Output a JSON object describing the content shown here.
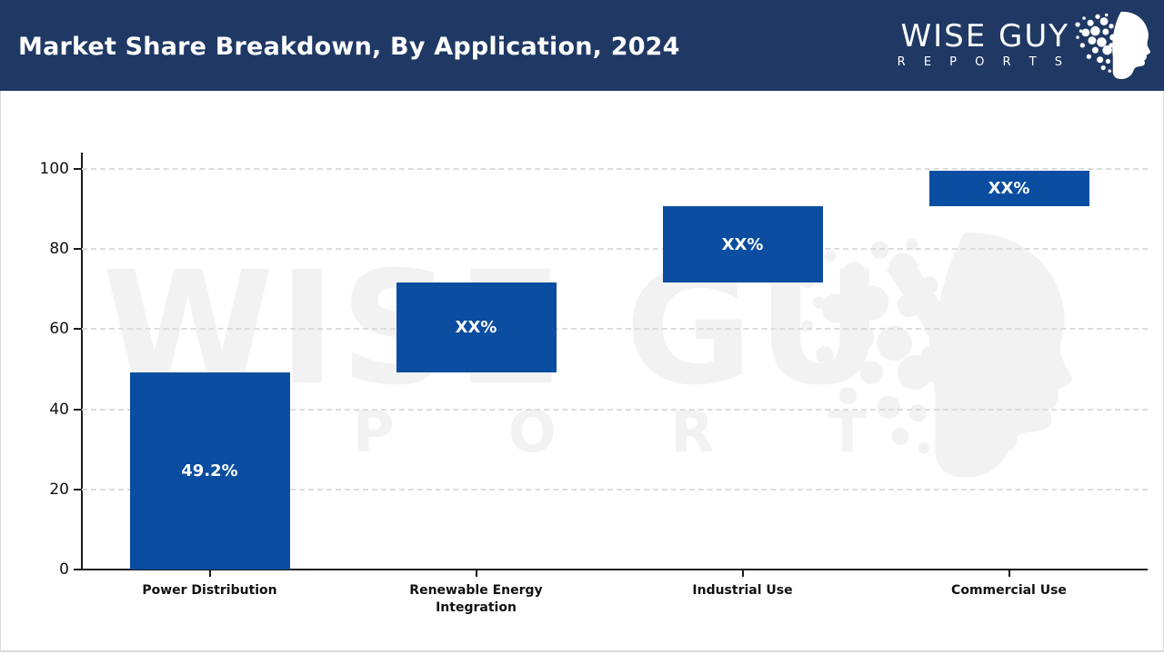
{
  "header": {
    "title": "Market Share Breakdown, By Application, 2024",
    "logo": {
      "line1": "WISE GUY",
      "line2": "R E P O R T S"
    }
  },
  "watermark": {
    "line1": "WISE GUY",
    "line2": "P O R T S"
  },
  "colors": {
    "header_bg": "#1f3864",
    "bar_blue": "#0b4da0",
    "grid_gray": "#dcdcdc",
    "watermark_gray": "#f2f2f2",
    "axis_black": "#1a1a1a"
  },
  "chart_data": {
    "type": "bar",
    "subtype": "waterfall",
    "title": "Market Share Breakdown, By Application, 2024",
    "categories": [
      "Power Distribution",
      "Renewable Energy Integration",
      "Industrial Use",
      "Commercial Use"
    ],
    "segments": [
      {
        "category": "Power Distribution",
        "start": 0,
        "end": 49.2,
        "label": "49.2%"
      },
      {
        "category": "Renewable Energy Integration",
        "start": 49.2,
        "end": 71.6,
        "label": "XX%"
      },
      {
        "category": "Industrial Use",
        "start": 71.6,
        "end": 90.7,
        "label": "XX%"
      },
      {
        "category": "Commercial Use",
        "start": 90.7,
        "end": 99.5,
        "label": "XX%"
      }
    ],
    "ylim": [
      0,
      100
    ],
    "yticks": [
      0,
      20,
      40,
      60,
      80,
      100
    ],
    "xlabel": "",
    "ylabel": "",
    "grid": {
      "horizontal": true,
      "style": "dashed"
    },
    "legend": null,
    "bar_color": "#0b4da0",
    "bar_label_color": "#ffffff"
  }
}
